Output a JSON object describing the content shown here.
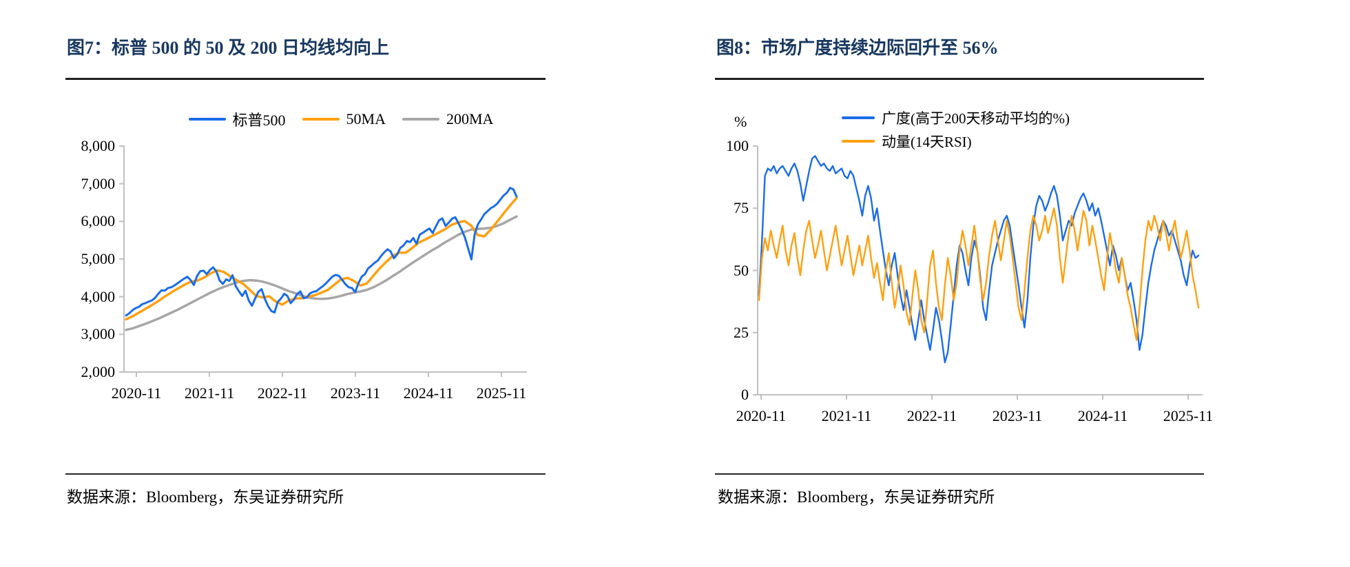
{
  "panels": [
    {
      "title": "图7：标普 500 的 50 及 200 日均线均向上",
      "source": "数据来源：Bloomberg，东吴证券研究所"
    },
    {
      "title": "图8：市场广度持续边际回升至 56%",
      "source": "数据来源：Bloomberg，东吴证券研究所"
    }
  ],
  "colors": {
    "title_navy": "#17375E",
    "series_blue": "#1B6CE8",
    "series_orange": "#FFA010",
    "series_gray": "#A6A6A6",
    "axis_gray": "#BFBFBF"
  },
  "chart_data": [
    {
      "type": "line",
      "title": "标普 500 的 50 及 200 日均线均向上",
      "x_range": [
        "2020-11",
        "2025-11"
      ],
      "x_tick_labels": [
        "2020-11",
        "2021-11",
        "2022-11",
        "2023-11",
        "2024-11",
        "2025-11"
      ],
      "y_tick_labels": [
        "8,000",
        "7,000",
        "6,000",
        "5,000",
        "4,000",
        "3,000",
        "2,000"
      ],
      "ylim": [
        2000,
        8000
      ],
      "grid": false,
      "legend_position": "top-center",
      "series": [
        {
          "name": "标普500",
          "color": "#1B6CE8",
          "values": [
            3500,
            3560,
            3640,
            3700,
            3730,
            3800,
            3830,
            3870,
            3900,
            3970,
            4080,
            4170,
            4160,
            4230,
            4250,
            4300,
            4360,
            4420,
            4480,
            4530,
            4440,
            4310,
            4550,
            4680,
            4690,
            4600,
            4710,
            4780,
            4670,
            4430,
            4340,
            4460,
            4420,
            4570,
            4280,
            4140,
            4020,
            4160,
            3900,
            3760,
            3950,
            4130,
            4200,
            3940,
            3750,
            3620,
            3580,
            3860,
            3950,
            4080,
            4020,
            3830,
            3920,
            4070,
            4140,
            3960,
            3980,
            4090,
            4130,
            4150,
            4220,
            4280,
            4360,
            4450,
            4540,
            4580,
            4550,
            4440,
            4330,
            4250,
            4230,
            4120,
            4360,
            4530,
            4600,
            4750,
            4820,
            4900,
            4960,
            5080,
            5180,
            5260,
            5200,
            5020,
            5120,
            5300,
            5360,
            5480,
            5450,
            5560,
            5410,
            5650,
            5700,
            5760,
            5810,
            5690,
            5870,
            6030,
            6080,
            5880,
            5970,
            6070,
            6110,
            5950,
            5780,
            5570,
            5280,
            4990,
            5650,
            5920,
            6050,
            6190,
            6270,
            6350,
            6400,
            6470,
            6580,
            6690,
            6760,
            6890,
            6850,
            6660
          ]
        },
        {
          "name": "50MA",
          "color": "#FFA010",
          "values": [
            3400,
            3480,
            3580,
            3680,
            3780,
            3890,
            4010,
            4120,
            4220,
            4320,
            4400,
            4430,
            4510,
            4620,
            4700,
            4660,
            4540,
            4440,
            4340,
            4180,
            4020,
            3980,
            4010,
            3870,
            3790,
            3900,
            3950,
            3960,
            4000,
            4040,
            4110,
            4180,
            4320,
            4460,
            4500,
            4420,
            4300,
            4350,
            4560,
            4760,
            4930,
            5090,
            5170,
            5170,
            5300,
            5440,
            5520,
            5610,
            5700,
            5790,
            5910,
            5970,
            6010,
            5890,
            5640,
            5600,
            5770,
            5990,
            6210,
            6420,
            6620
          ]
        },
        {
          "name": "200MA",
          "color": "#A6A6A6",
          "values": [
            3120,
            3160,
            3220,
            3280,
            3350,
            3420,
            3500,
            3580,
            3660,
            3750,
            3840,
            3930,
            4020,
            4110,
            4190,
            4260,
            4320,
            4380,
            4420,
            4440,
            4430,
            4400,
            4350,
            4290,
            4220,
            4150,
            4090,
            4030,
            3980,
            3950,
            3940,
            3950,
            3980,
            4020,
            4070,
            4110,
            4140,
            4180,
            4250,
            4340,
            4440,
            4550,
            4660,
            4780,
            4900,
            5010,
            5120,
            5230,
            5330,
            5440,
            5540,
            5640,
            5720,
            5780,
            5800,
            5810,
            5830,
            5880,
            5950,
            6040,
            6130
          ]
        }
      ]
    },
    {
      "type": "line",
      "title": "市场广度持续边际回升至 56%",
      "unit_label": "%",
      "x_range": [
        "2020-11",
        "2025-11"
      ],
      "x_tick_labels": [
        "2020-11",
        "2021-11",
        "2022-11",
        "2023-11",
        "2024-11",
        "2025-11"
      ],
      "y_tick_labels": [
        "100",
        "75",
        "50",
        "25",
        "0"
      ],
      "ylim": [
        0,
        100
      ],
      "grid": false,
      "legend_position": "top-right",
      "series": [
        {
          "name": "广度(高于200天移动平均的%)",
          "color": "#1B6CE8",
          "values": [
            40,
            62,
            88,
            91,
            90,
            92,
            89,
            91,
            92,
            90,
            88,
            91,
            93,
            90,
            85,
            78,
            84,
            90,
            95,
            96,
            94,
            92,
            93,
            91,
            90,
            92,
            89,
            90,
            91,
            88,
            87,
            90,
            88,
            83,
            78,
            72,
            80,
            84,
            79,
            70,
            75,
            66,
            58,
            50,
            44,
            52,
            57,
            48,
            40,
            34,
            42,
            35,
            28,
            22,
            30,
            38,
            30,
            24,
            18,
            26,
            35,
            30,
            22,
            13,
            17,
            28,
            40,
            52,
            60,
            57,
            50,
            44,
            55,
            62,
            58,
            48,
            35,
            30,
            42,
            52,
            57,
            62,
            66,
            70,
            72,
            68,
            60,
            52,
            44,
            35,
            27,
            38,
            55,
            68,
            76,
            80,
            78,
            74,
            77,
            81,
            84,
            80,
            72,
            62,
            66,
            70,
            68,
            73,
            76,
            79,
            81,
            78,
            74,
            77,
            72,
            75,
            70,
            64,
            58,
            52,
            60,
            56,
            50,
            55,
            48,
            42,
            45,
            38,
            30,
            18,
            24,
            35,
            45,
            52,
            58,
            62,
            66,
            70,
            68,
            64,
            66,
            62,
            58,
            54,
            48,
            44,
            52,
            58,
            55,
            56
          ]
        },
        {
          "name": "动量(14天RSI)",
          "color": "#FFA010",
          "values": [
            38,
            55,
            63,
            58,
            66,
            60,
            55,
            62,
            68,
            58,
            52,
            60,
            65,
            55,
            48,
            58,
            66,
            70,
            62,
            55,
            60,
            66,
            58,
            50,
            56,
            62,
            68,
            60,
            52,
            58,
            64,
            56,
            48,
            54,
            60,
            52,
            58,
            64,
            55,
            47,
            53,
            45,
            38,
            50,
            57,
            45,
            35,
            42,
            52,
            44,
            33,
            28,
            40,
            50,
            42,
            30,
            25,
            38,
            52,
            58,
            45,
            35,
            30,
            44,
            55,
            48,
            38,
            45,
            58,
            66,
            60,
            52,
            60,
            68,
            58,
            46,
            38,
            45,
            56,
            64,
            70,
            62,
            54,
            62,
            70,
            64,
            55,
            45,
            35,
            30,
            42,
            55,
            66,
            72,
            68,
            62,
            66,
            72,
            65,
            70,
            75,
            68,
            55,
            45,
            55,
            65,
            72,
            66,
            58,
            66,
            74,
            70,
            60,
            68,
            62,
            55,
            48,
            42,
            55,
            65,
            58,
            50,
            45,
            55,
            48,
            40,
            35,
            28,
            22,
            35,
            50,
            62,
            70,
            66,
            72,
            68,
            62,
            70,
            65,
            58,
            65,
            70,
            62,
            55,
            60,
            66,
            58,
            48,
            42,
            35
          ]
        }
      ]
    }
  ]
}
